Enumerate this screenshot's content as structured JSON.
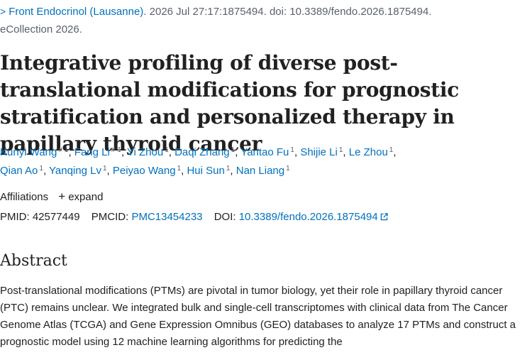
{
  "citation": {
    "journal": "Front Endocrinol (Lausanne)",
    "after_journal": ". 2026 Jul 27:17:1875494. doi: 10.3389/fendo.2026.1875494.",
    "ecollection": "eCollection 2026."
  },
  "title": "Integrative profiling of diverse post-translational modifications for prognostic stratification and personalized therapy in papillary thyroid cancer",
  "authors": [
    {
      "name": "Kunyi Wang",
      "equal": "#",
      "aff": "1"
    },
    {
      "name": "Fang Li",
      "equal": "#",
      "aff": "1"
    },
    {
      "name": "Yi Zhou",
      "aff": "1"
    },
    {
      "name": "Daqi Zhang",
      "aff": "1"
    },
    {
      "name": "Yantao Fu",
      "aff": "1"
    },
    {
      "name": "Shijie Li",
      "aff": "1"
    },
    {
      "name": "Le Zhou",
      "aff": "1"
    },
    {
      "name": "Qian Ao",
      "aff": "1"
    },
    {
      "name": "Yanqing Lv",
      "aff": "1"
    },
    {
      "name": "Peiyao Wang",
      "aff": "1"
    },
    {
      "name": "Hui Sun",
      "aff": "1"
    },
    {
      "name": "Nan Liang",
      "aff": "1"
    }
  ],
  "affiliations": {
    "label": "Affiliations",
    "expand_label": "expand"
  },
  "ids": {
    "pmid_label": "PMID:",
    "pmid": "42577449",
    "pmcid_label": "PMCID:",
    "pmcid": "PMC13454233",
    "doi_label": "DOI:",
    "doi": "10.3389/fendo.2026.1875494"
  },
  "abstract": {
    "heading": "Abstract",
    "text": "Post-translational modifications (PTMs) are pivotal in tumor biology, yet their role in papillary thyroid cancer (PTC) remains unclear. We integrated bulk and single-cell transcriptomes with clinical data from The Cancer Genome Atlas (TCGA) and Gene Expression Omnibus (GEO) databases to analyze 17 PTMs and construct a prognostic model using 12 machine learning algorithms for predicting the"
  },
  "colors": {
    "link": "#0071bc",
    "text": "#212121",
    "muted": "#5b616b"
  }
}
